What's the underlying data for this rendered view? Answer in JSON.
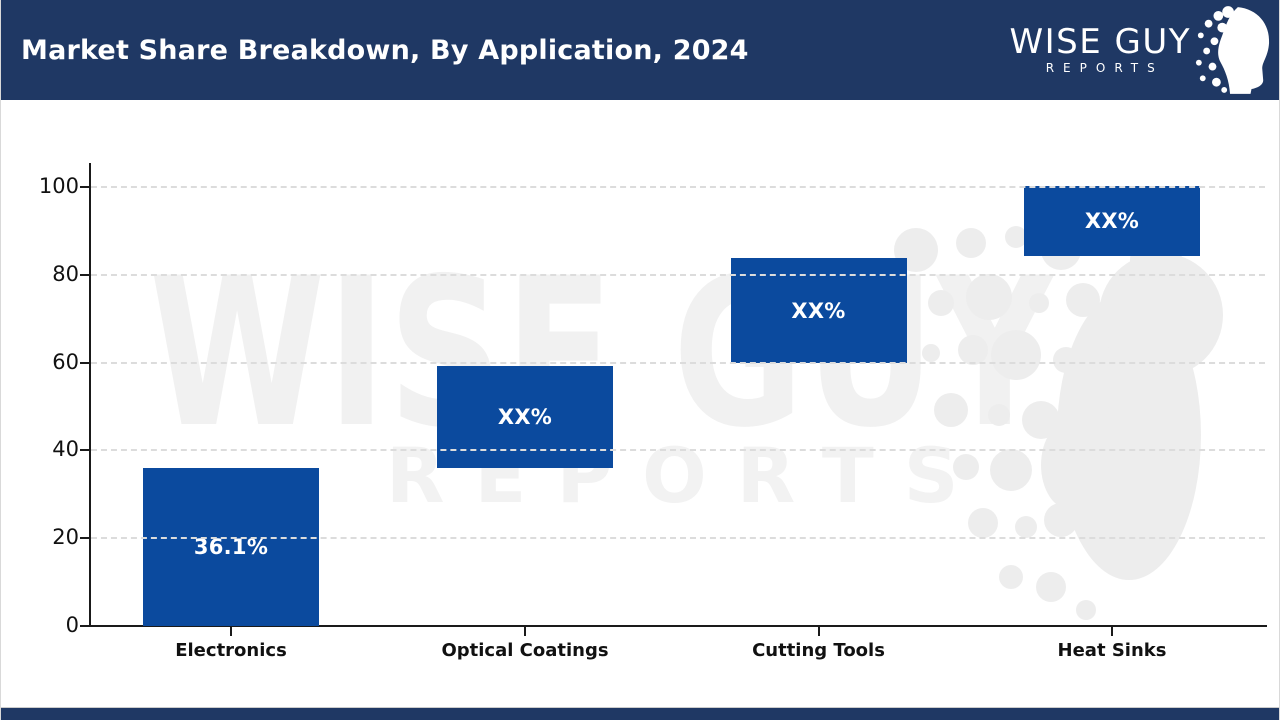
{
  "header": {
    "title": "Market Share Breakdown, By Application, 2024",
    "bg_color": "#1f3864"
  },
  "logo": {
    "wordmark": "WISE GUY",
    "subtext": "REPORTS"
  },
  "watermark": {
    "line1": "WISE GUY",
    "line2": "REPORTS"
  },
  "chart_data": {
    "type": "bar",
    "variant": "waterfall",
    "title": "Market Share Breakdown, By Application, 2024",
    "categories": [
      "Electronics",
      "Optical Coatings",
      "Cutting Tools",
      "Heat Sinks"
    ],
    "segments": [
      {
        "category": "Electronics",
        "start": 0,
        "end": 36.1,
        "value": 36.1,
        "label": "36.1%"
      },
      {
        "category": "Optical Coatings",
        "start": 36.1,
        "end": 59.3,
        "value": 23.2,
        "label": "XX%"
      },
      {
        "category": "Cutting Tools",
        "start": 59.8,
        "end": 83.9,
        "value": 24.1,
        "label": "XX%"
      },
      {
        "category": "Heat Sinks",
        "start": 84.2,
        "end": 100.2,
        "value": 16.0,
        "label": "XX%"
      }
    ],
    "xlabel": "",
    "ylabel": "",
    "ylim": [
      0,
      100
    ],
    "yticks": [
      0,
      20,
      40,
      60,
      80,
      100
    ],
    "grid": "horizontal-dashed",
    "legend": "none",
    "bar_color": "#0b4a9e",
    "bar_label_color": "#ffffff"
  },
  "footer": {
    "bg_color": "#1f3864"
  }
}
